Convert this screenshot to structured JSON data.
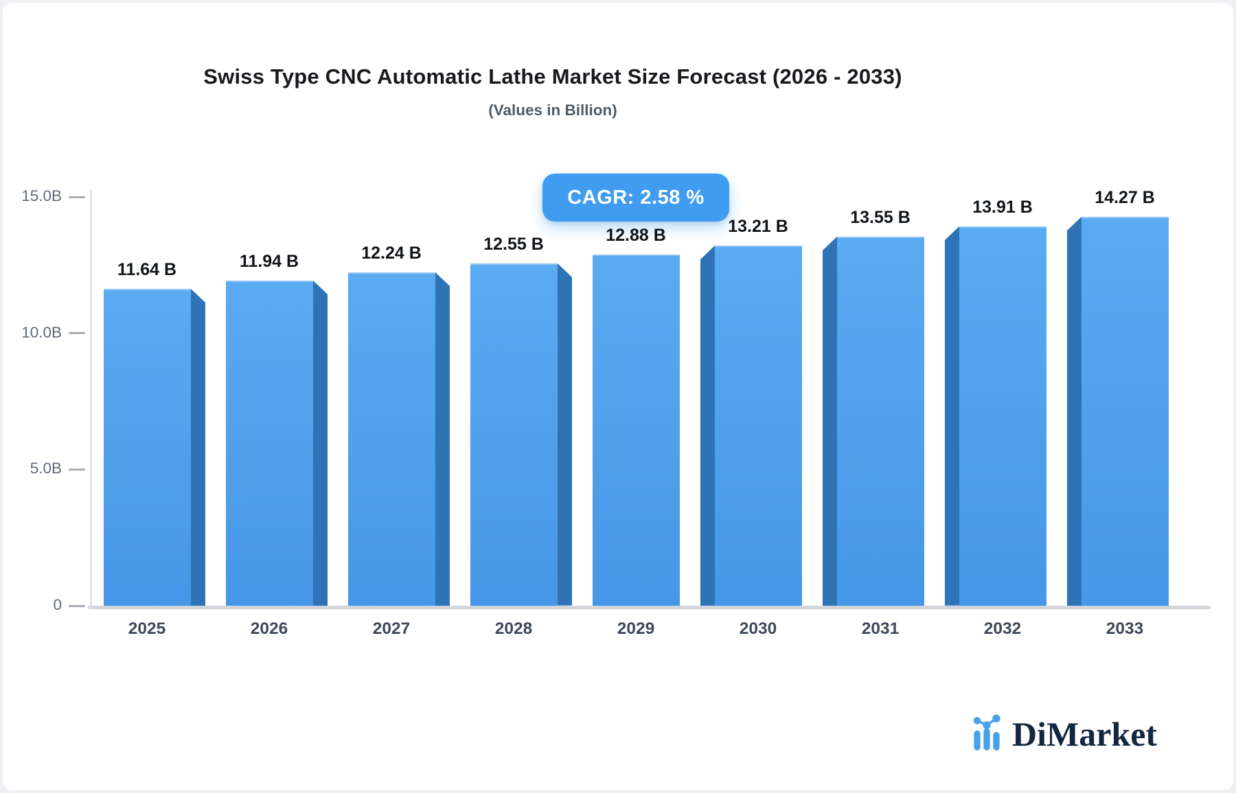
{
  "chart_data": {
    "type": "bar",
    "title": "Swiss Type CNC Automatic Lathe Market Size Forecast (2026 - 2033)",
    "subtitle": "(Values in Billion)",
    "cagr_label": "CAGR: 2.58 %",
    "categories": [
      "2025",
      "2026",
      "2027",
      "2028",
      "2029",
      "2030",
      "2031",
      "2032",
      "2033"
    ],
    "values": [
      11.64,
      11.94,
      12.24,
      12.55,
      12.88,
      13.21,
      13.55,
      13.91,
      14.27
    ],
    "value_labels": [
      "11.64 B",
      "11.94 B",
      "12.24 B",
      "12.55 B",
      "12.88 B",
      "13.21 B",
      "13.55 B",
      "13.91 B",
      "14.27 B"
    ],
    "unit": "B",
    "xlabel": "",
    "ylabel": "",
    "ylim": [
      0,
      15
    ],
    "yticks": [
      {
        "value": 0,
        "label": "0"
      },
      {
        "value": 5,
        "label": "5.0B"
      },
      {
        "value": 10,
        "label": "10.0B"
      },
      {
        "value": 15,
        "label": "15.0B"
      }
    ],
    "grid": "off",
    "legend": "none",
    "bar_style": {
      "face_top_color": "#5babf2",
      "face_bottom_color": "#4697e8",
      "side_color": "#2e73b5",
      "effect": "3d-extrusion-toward-center"
    },
    "badge_color": "#3f9cf0"
  },
  "branding": {
    "name": "DiMarket",
    "icon": "bar-line-chart-icon",
    "icon_color": "#47a1ea",
    "text_color": "#142741"
  }
}
